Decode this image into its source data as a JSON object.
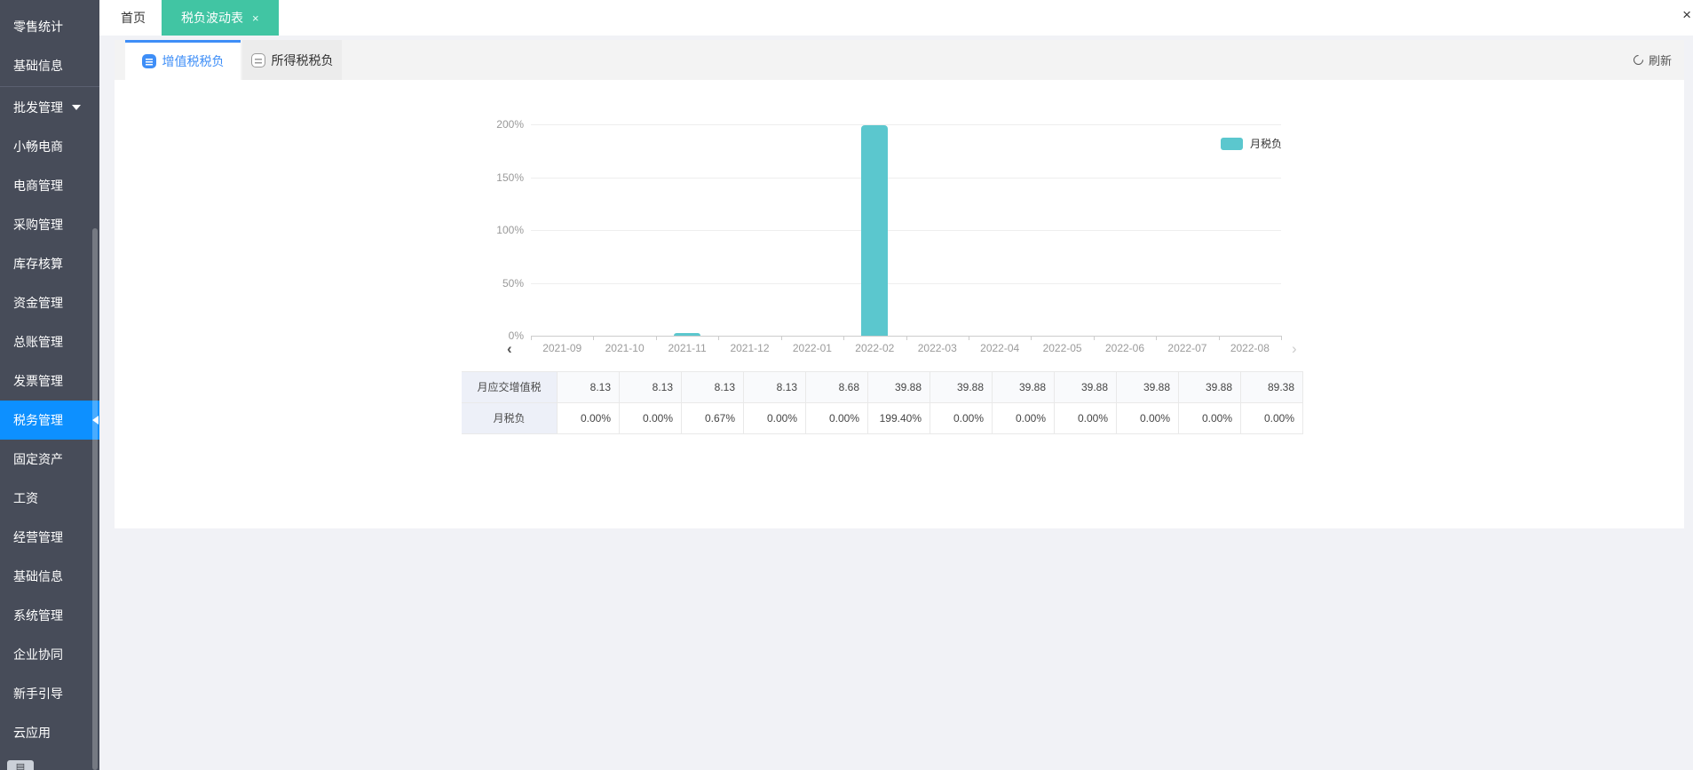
{
  "window": {
    "close_label": "×"
  },
  "sidebar": {
    "items": [
      {
        "label": "零售统计"
      },
      {
        "label": "基础信息"
      },
      {
        "divider": true
      },
      {
        "label": "批发管理",
        "caret": true
      },
      {
        "label": "小畅电商"
      },
      {
        "label": "电商管理"
      },
      {
        "label": "采购管理"
      },
      {
        "label": "库存核算"
      },
      {
        "label": "资金管理"
      },
      {
        "label": "总账管理"
      },
      {
        "label": "发票管理"
      },
      {
        "label": "税务管理",
        "active": true
      },
      {
        "label": "固定资产"
      },
      {
        "label": "工资"
      },
      {
        "label": "经营管理"
      },
      {
        "label": "基础信息"
      },
      {
        "label": "系统管理"
      },
      {
        "label": "企业协同"
      },
      {
        "label": "新手引导"
      },
      {
        "label": "云应用"
      }
    ],
    "bottom_button_icon": "▤"
  },
  "tabbar": {
    "home_label": "首页",
    "active_tab_label": "税负波动表",
    "active_tab_close": "×"
  },
  "panel": {
    "tab_vat": "增值税税负",
    "tab_income": "所得税税负",
    "refresh_label": "刷新"
  },
  "chart_data": {
    "type": "bar",
    "title": "",
    "categories": [
      "2021-09",
      "2021-10",
      "2021-11",
      "2021-12",
      "2022-01",
      "2022-02",
      "2022-03",
      "2022-04",
      "2022-05",
      "2022-06",
      "2022-07",
      "2022-08"
    ],
    "series": [
      {
        "name": "月税负",
        "color": "#5bc7ce",
        "values": [
          0.0,
          0.0,
          0.67,
          0.0,
          0.0,
          199.4,
          0.0,
          0.0,
          0.0,
          0.0,
          0.0,
          0.0
        ]
      }
    ],
    "ylabel_ticks": [
      "0%",
      "50%",
      "100%",
      "150%",
      "200%"
    ],
    "ylim": [
      0,
      200
    ],
    "grid": true,
    "legend_position": "top-right",
    "nav_prev": "‹",
    "nav_next": "›"
  },
  "table": {
    "rows": [
      {
        "header": "月应交增值税",
        "values": [
          "8.13",
          "8.13",
          "8.13",
          "8.13",
          "8.68",
          "39.88",
          "39.88",
          "39.88",
          "39.88",
          "39.88",
          "39.88",
          "89.38"
        ]
      },
      {
        "header": "月税负",
        "values": [
          "0.00%",
          "0.00%",
          "0.67%",
          "0.00%",
          "0.00%",
          "199.40%",
          "0.00%",
          "0.00%",
          "0.00%",
          "0.00%",
          "0.00%",
          "0.00%"
        ]
      }
    ]
  },
  "colors": {
    "sidebar_bg": "#474c59",
    "sidebar_active": "#0d90ff",
    "top_tab_active": "#41c5a3",
    "inner_tab_accent": "#3e8ef7",
    "bar": "#5bc7ce",
    "table_header_bg": "#edf0f8"
  }
}
